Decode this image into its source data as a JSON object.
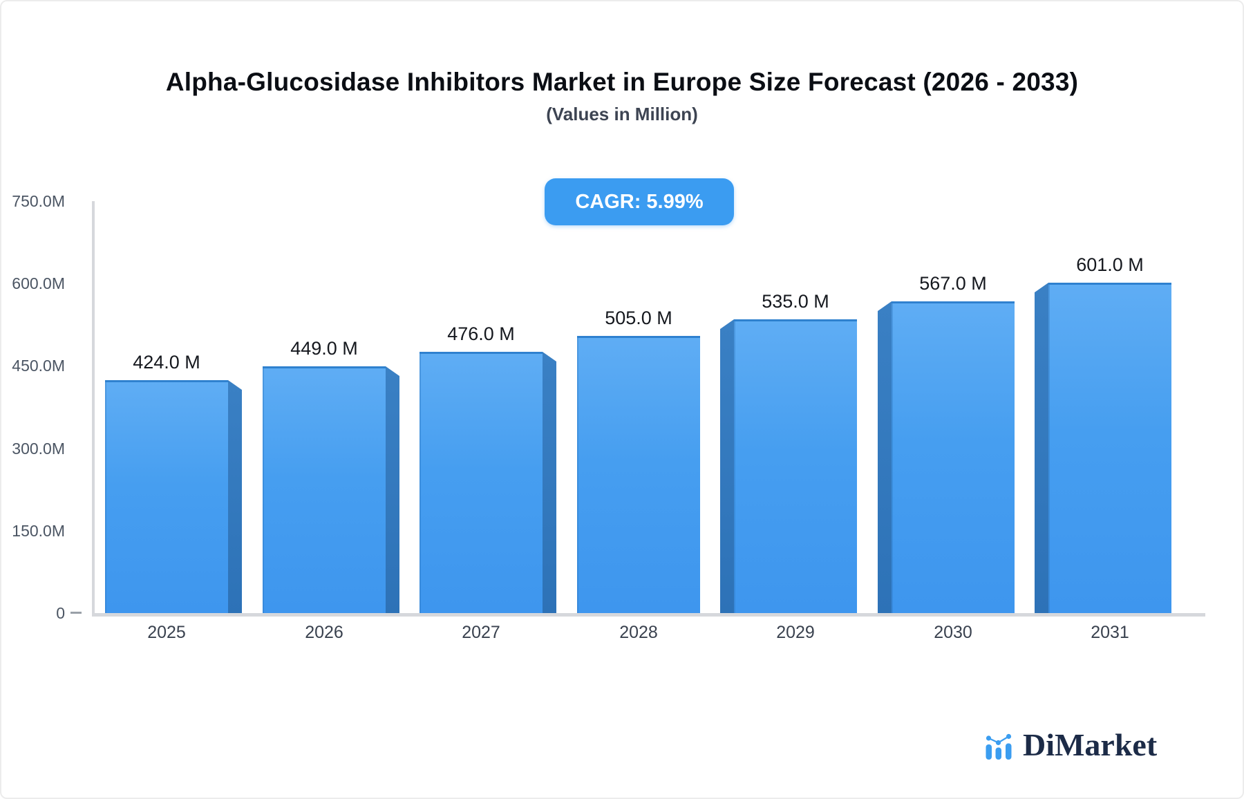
{
  "header": {
    "title": "Alpha-Glucosidase Inhibitors Market in Europe Size Forecast (2026 - 2033)",
    "subtitle": "(Values in Million)"
  },
  "badge": {
    "label": "CAGR: 5.99%",
    "bg_color": "#3b9cf1",
    "text_color": "#ffffff"
  },
  "chart_data": {
    "type": "bar",
    "title": "Alpha-Glucosidase Inhibitors Market in Europe Size Forecast (2026 - 2033)",
    "subtitle": "(Values in Million)",
    "categories": [
      "2025",
      "2026",
      "2027",
      "2028",
      "2029",
      "2030",
      "2031"
    ],
    "values": [
      424,
      449,
      476,
      505,
      535,
      567,
      601
    ],
    "value_labels": [
      "424.0 M",
      "449.0 M",
      "476.0 M",
      "505.0 M",
      "535.0 M",
      "567.0 M",
      "601.0 M"
    ],
    "unit": "Million",
    "xlabel": "",
    "ylabel": "",
    "ylim": [
      0,
      750
    ],
    "y_ticks": [
      {
        "label": "750.0M",
        "value": 750
      },
      {
        "label": "600.0M",
        "value": 600
      },
      {
        "label": "450.0M",
        "value": 450
      },
      {
        "label": "300.0M",
        "value": 300
      },
      {
        "label": "150.0M",
        "value": 150
      },
      {
        "label": "0",
        "value": 0
      }
    ],
    "grid": false,
    "legend": null,
    "bar_color_top": "#5fadf4",
    "bar_color_bottom": "#3e96ee",
    "bar_side_color": "#2d72b7",
    "axis_color": "#d6d8dc"
  },
  "footer": {
    "brand": "DiMarket",
    "brand_color": "#1c2b47",
    "logo_icon": "mini-bar-chart-logo-icon",
    "icon_color": "#3b9df0"
  }
}
